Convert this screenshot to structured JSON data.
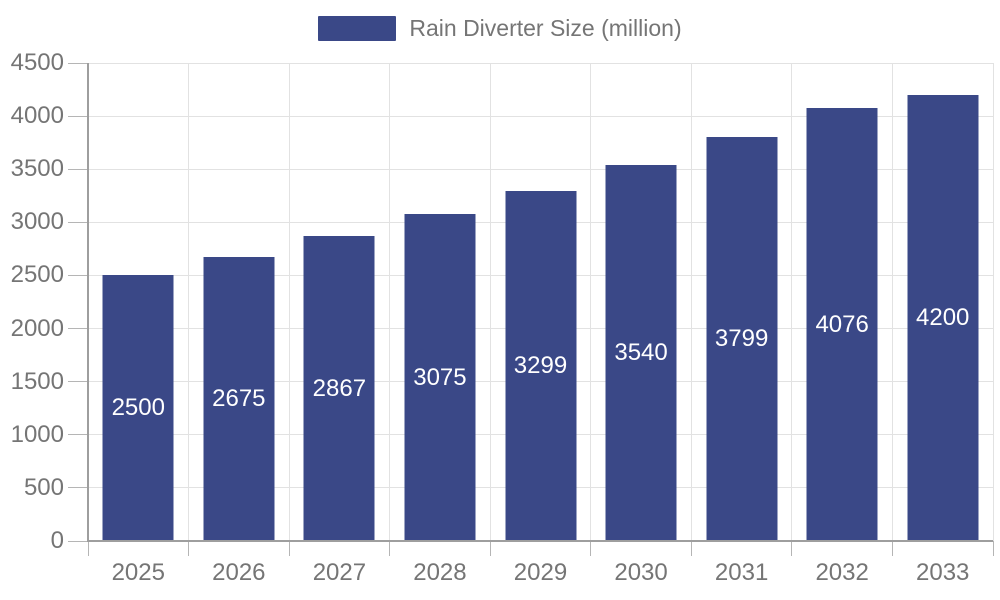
{
  "chart_data": {
    "type": "bar",
    "title": "Rain Diverter Size (million)",
    "categories": [
      "2025",
      "2026",
      "2027",
      "2028",
      "2029",
      "2030",
      "2031",
      "2032",
      "2033"
    ],
    "series": [
      {
        "name": "Rain Diverter Size (million)",
        "values": [
          2500,
          2675,
          2867,
          3075,
          3299,
          3540,
          3799,
          4076,
          4200
        ]
      }
    ],
    "value_labels": [
      "2500",
      "2675",
      "2867",
      "3075",
      "3299",
      "3540",
      "3799",
      "4076",
      "4200"
    ],
    "xlabel": "",
    "ylabel": "",
    "ylim": [
      0,
      4500
    ],
    "ytick_step": 500,
    "yticks": [
      0,
      500,
      1000,
      1500,
      2000,
      2500,
      3000,
      3500,
      4000,
      4500
    ],
    "grid": true,
    "legend_position": "top",
    "bar_label_position": "inside-middle"
  },
  "colors": {
    "bar": "#3A4887",
    "bar_label": "#FFFFFF",
    "axis_text": "#757575",
    "legend_text": "#757575",
    "grid_line": "#E2E2E2",
    "axis_line": "#9E9E9E",
    "tick_line": "#B5B5B5",
    "background": "#FFFFFF"
  }
}
